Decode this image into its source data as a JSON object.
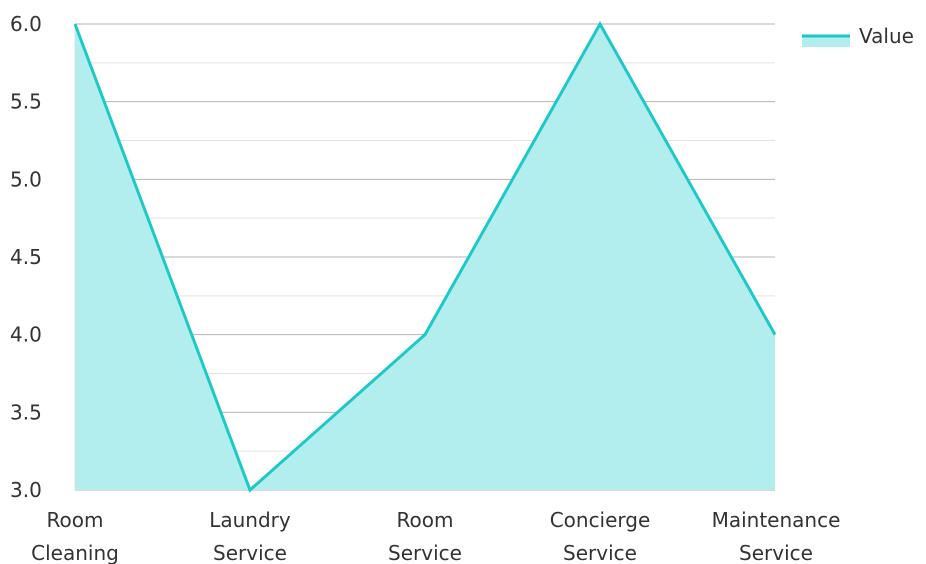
{
  "chart_data": {
    "type": "area",
    "categories": [
      "Room Cleaning",
      "Laundry Service",
      "Room Service",
      "Concierge Service",
      "Maintenance Service"
    ],
    "category_lines": [
      [
        "Room",
        "Cleaning"
      ],
      [
        "Laundry",
        "Service"
      ],
      [
        "Room",
        "Service"
      ],
      [
        "Concierge",
        "Service"
      ],
      [
        "Maintenance",
        "Service"
      ]
    ],
    "series": [
      {
        "name": "Value",
        "values": [
          6,
          3,
          4,
          6,
          4
        ]
      }
    ],
    "ylim": [
      3.0,
      6.0
    ],
    "yticks": [
      "3.0",
      "3.5",
      "4.0",
      "4.5",
      "5.0",
      "5.5",
      "6.0"
    ],
    "grid": true,
    "legend": "top-right",
    "colors": {
      "line": "#1ec8c8",
      "fill": "#b2eeee",
      "grid_major": "#b5b5b5",
      "grid_minor": "#e3e3e3"
    }
  }
}
